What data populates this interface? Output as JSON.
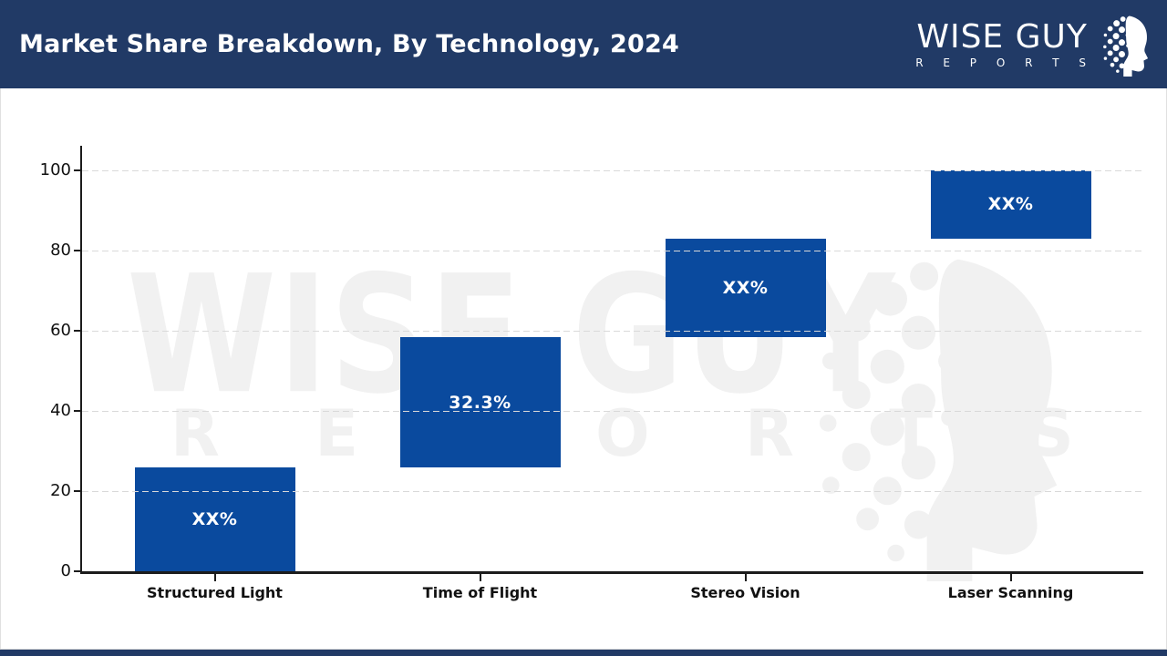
{
  "header": {
    "title": "Market Share Breakdown, By Technology, 2024",
    "logo": {
      "brand": "WISE GUY",
      "sub": "R E P O R T S"
    }
  },
  "watermark": {
    "brand": "WISE GUY",
    "sub": "R E P O R T S"
  },
  "chart_data": {
    "type": "waterfall",
    "title": "Market Share Breakdown, By Technology, 2024",
    "categories": [
      "Structured Light",
      "Time of Flight",
      "Stereo Vision",
      "Laser Scanning"
    ],
    "segments": [
      {
        "category": "Structured Light",
        "start": 0,
        "end": 26,
        "increment": 26,
        "label": "XX%"
      },
      {
        "category": "Time of Flight",
        "start": 26,
        "end": 58.3,
        "increment": 32.3,
        "label": "32.3%"
      },
      {
        "category": "Stereo Vision",
        "start": 58.3,
        "end": 83,
        "increment": 24.7,
        "label": "XX%"
      },
      {
        "category": "Laser Scanning",
        "start": 83,
        "end": 100,
        "increment": 17,
        "label": "XX%"
      }
    ],
    "yticks": [
      0,
      20,
      40,
      60,
      80,
      100
    ],
    "ylim": [
      0,
      106
    ],
    "xlabel": "",
    "ylabel": "",
    "grid": "dashed-horizontal",
    "legend": "none",
    "bar_color": "#0a4a9e",
    "bar_label_color": "#ffffff",
    "grid_color": "#d9d9d9",
    "axis_color": "#1c1c1c",
    "tick_text_color": "#111111"
  },
  "colors": {
    "header_bg": "#213a66",
    "footer_bg": "#213a66",
    "watermark": "#f1f1f1"
  }
}
